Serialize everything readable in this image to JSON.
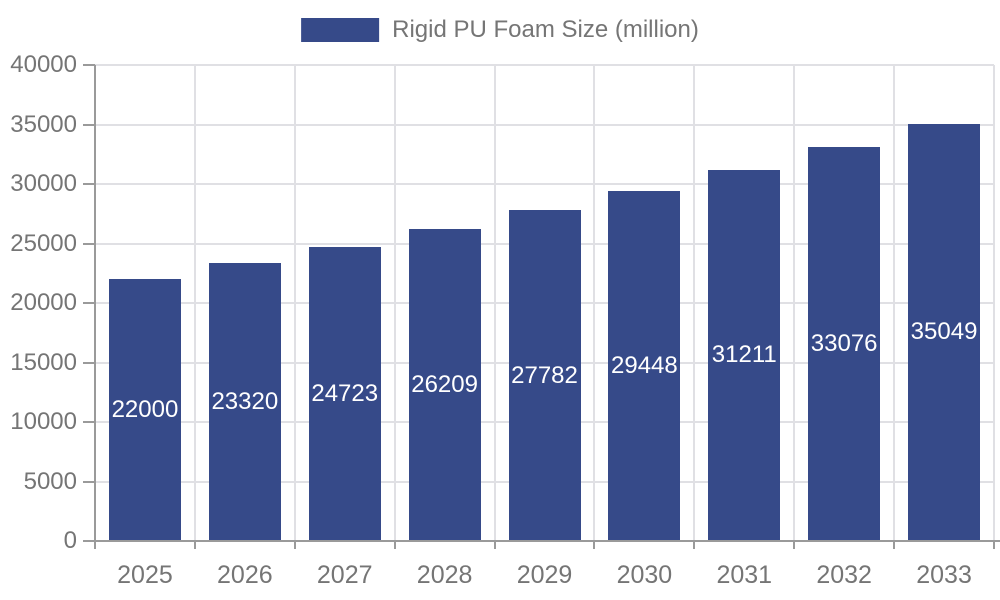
{
  "legend": {
    "label": "Rigid PU Foam Size (million)"
  },
  "colors": {
    "bar": "#364A89",
    "grid": "#E0E0E4",
    "axis": "#9A9A9A",
    "axis_label": "#757575",
    "legend_label": "#757575",
    "value_label": "#FFFFFF",
    "background": "#FFFFFF"
  },
  "chart_data": {
    "type": "bar",
    "title": "Rigid PU Foam Size (million)",
    "series_name": "Rigid PU Foam Size (million)",
    "categories": [
      "2025",
      "2026",
      "2027",
      "2028",
      "2029",
      "2030",
      "2031",
      "2032",
      "2033"
    ],
    "values": [
      22000,
      23320,
      24723,
      26209,
      27782,
      29448,
      31211,
      33076,
      35049
    ],
    "xlabel": "",
    "ylabel": "",
    "ylim": [
      0,
      40000
    ],
    "ytick_step": 5000,
    "ytick_labels": [
      "0",
      "5000",
      "10000",
      "15000",
      "20000",
      "25000",
      "30000",
      "35000",
      "40000"
    ],
    "grid": true,
    "legend_position": "top-center",
    "value_label_position": "inside-center"
  }
}
